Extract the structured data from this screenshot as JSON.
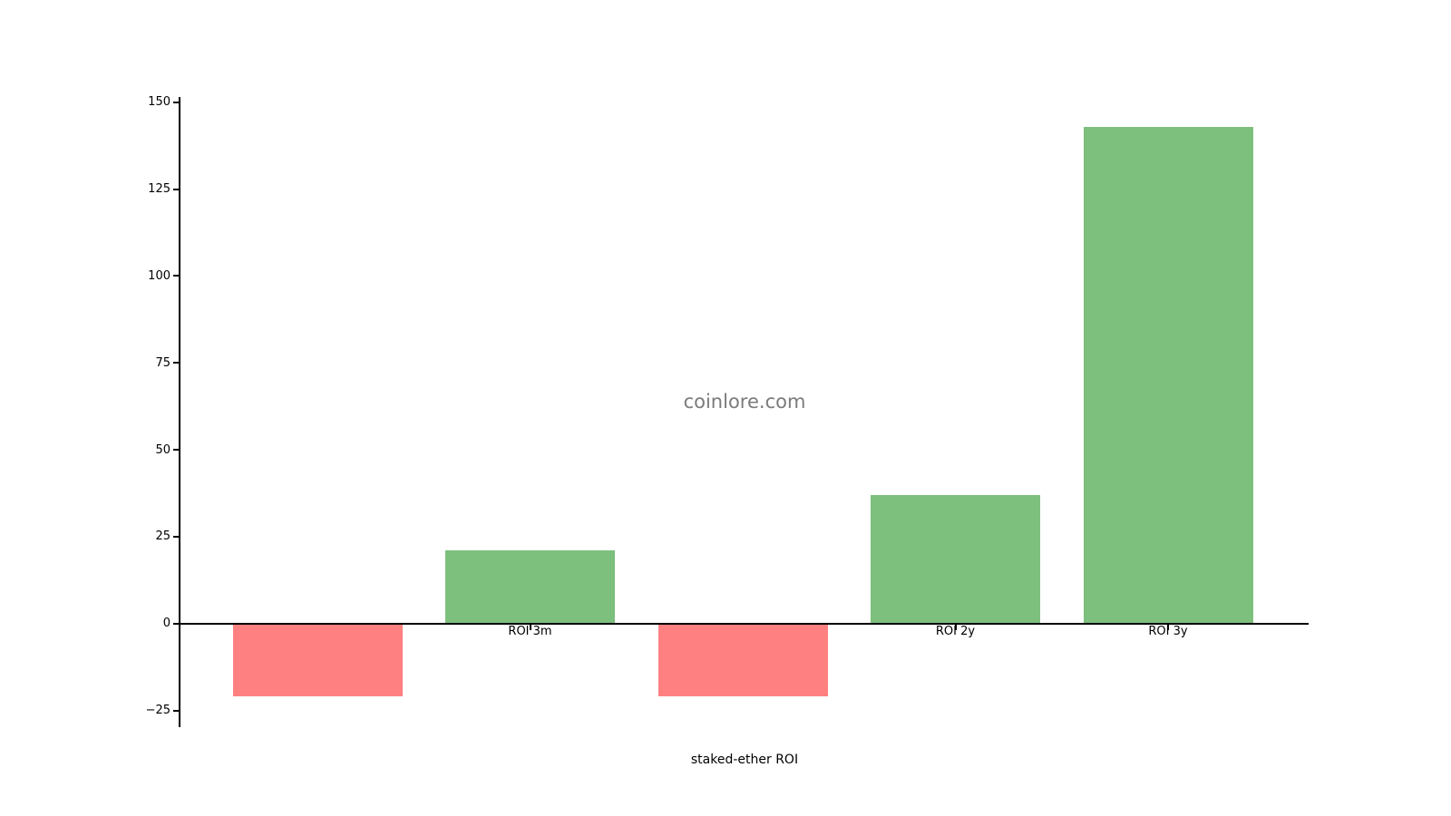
{
  "chart_data": {
    "type": "bar",
    "title": "staked-ether ROI",
    "watermark": "coinlore.com",
    "categories": [
      "",
      "ROI 3m",
      "",
      "ROI 2y",
      "ROI 3y"
    ],
    "values": [
      -21,
      21,
      -21,
      37,
      143
    ],
    "bar_colors": [
      "#ff8080",
      "#7dbf7d",
      "#ff8080",
      "#7dbf7d",
      "#7dbf7d"
    ],
    "yticks": [
      150,
      125,
      100,
      75,
      50,
      25,
      0,
      -25
    ],
    "ytick_labels": [
      "150",
      "125",
      "100",
      "75",
      "50",
      "25",
      "0",
      "−25"
    ],
    "ylim": [
      -29.8,
      151.5
    ],
    "xlabel": "",
    "ylabel": "",
    "grid": false,
    "legend": null,
    "colors": {
      "positive": "#7dbf7d",
      "negative": "#ff8080",
      "axis": "#000000",
      "watermark_text": "#7b7b7b",
      "background": "#ffffff"
    }
  }
}
